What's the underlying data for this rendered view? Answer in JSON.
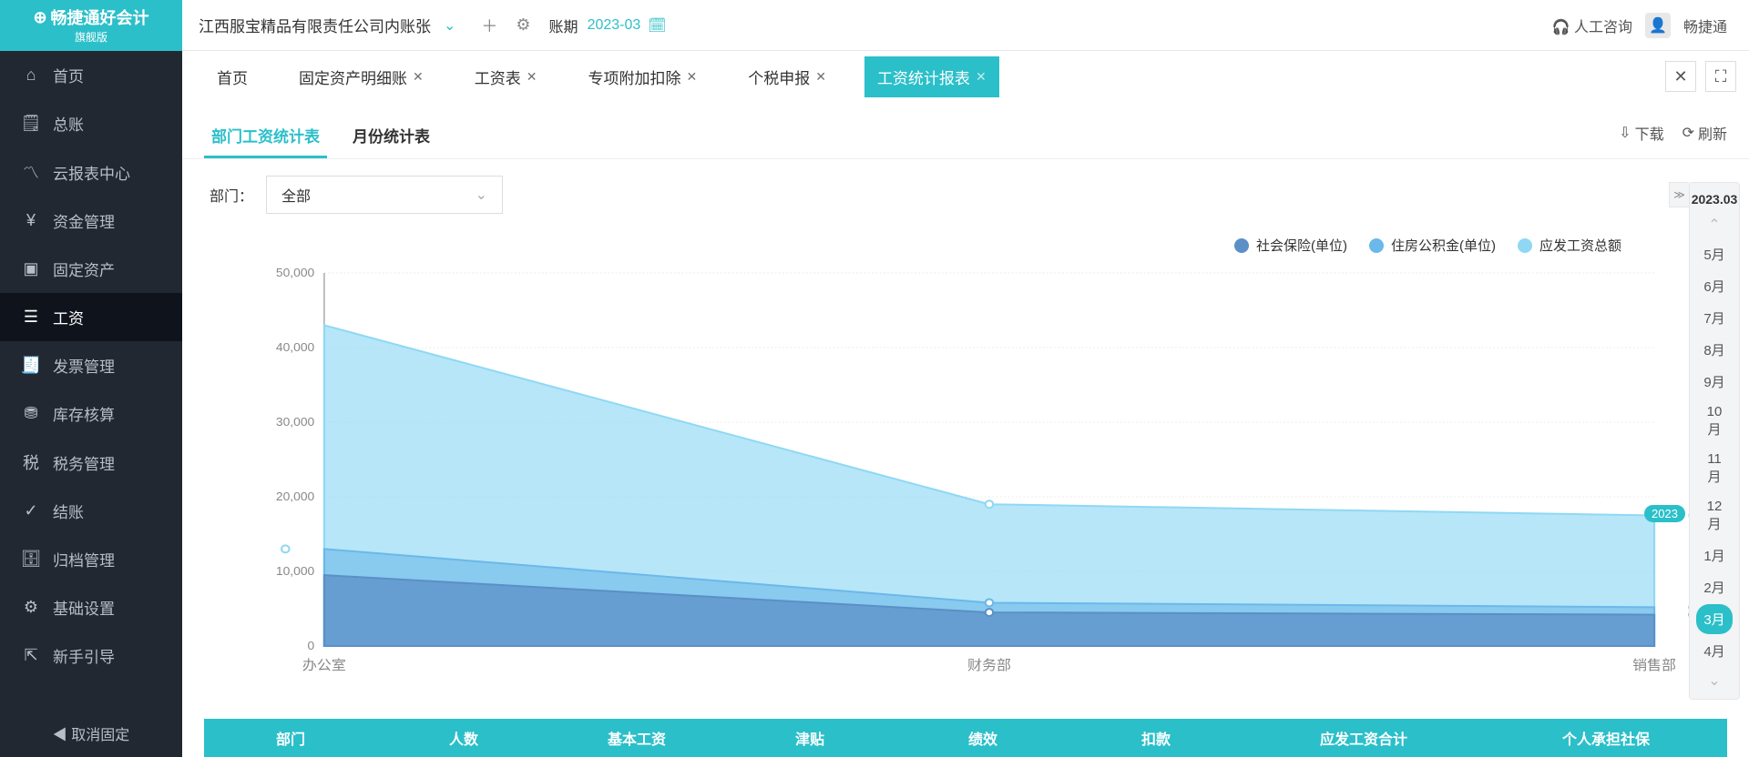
{
  "branding": {
    "logo": "畅捷通好会计",
    "edition": "旗舰版"
  },
  "company": {
    "name": "江西服宝精品有限责任公司内账张"
  },
  "period": {
    "label": "账期",
    "value": "2023-03"
  },
  "headerRight": {
    "consult": "人工咨询",
    "user": "畅捷通"
  },
  "sidebar": {
    "items": [
      {
        "label": "首页",
        "icon": "⌂"
      },
      {
        "label": "总账",
        "icon": "🗒"
      },
      {
        "label": "云报表中心",
        "icon": "〽"
      },
      {
        "label": "资金管理",
        "icon": "¥"
      },
      {
        "label": "固定资产",
        "icon": "▣"
      },
      {
        "label": "工资",
        "icon": "☰",
        "active": true
      },
      {
        "label": "发票管理",
        "icon": "🧾"
      },
      {
        "label": "库存核算",
        "icon": "⛃"
      },
      {
        "label": "税务管理",
        "icon": "税"
      },
      {
        "label": "结账",
        "icon": "✓"
      },
      {
        "label": "归档管理",
        "icon": "🗄"
      },
      {
        "label": "基础设置",
        "icon": "⚙"
      },
      {
        "label": "新手引导",
        "icon": "⇱"
      }
    ],
    "pinToggle": "取消固定"
  },
  "mainTabs": [
    {
      "label": "首页",
      "closable": false
    },
    {
      "label": "固定资产明细账",
      "closable": true
    },
    {
      "label": "工资表",
      "closable": true
    },
    {
      "label": "专项附加扣除",
      "closable": true
    },
    {
      "label": "个税申报",
      "closable": true
    },
    {
      "label": "工资统计报表",
      "closable": true,
      "active": true
    }
  ],
  "subTabs": {
    "a": "部门工资统计表",
    "b": "月份统计表"
  },
  "actions": {
    "download": "下载",
    "refresh": "刷新"
  },
  "filter": {
    "label": "部门：",
    "value": "全部"
  },
  "chart": {
    "type": "area",
    "legend": [
      {
        "label": "社会保险(单位)",
        "color": "#5b8fc7"
      },
      {
        "label": "住房公积金(单位)",
        "color": "#6bb8ea"
      },
      {
        "label": "应发工资总额",
        "color": "#8fd8f4"
      }
    ],
    "categories": [
      "办公室",
      "财务部",
      "销售部"
    ],
    "series": [
      {
        "name": "应发工资总额",
        "color": "#8fd8f4",
        "fillOpacity": 0.65,
        "values": [
          43000,
          19000,
          17500
        ]
      },
      {
        "name": "住房公积金(单位)",
        "color": "#6bb8ea",
        "fillOpacity": 0.6,
        "values": [
          13000,
          5800,
          5200
        ]
      },
      {
        "name": "社会保险(单位)",
        "color": "#5b8fc7",
        "fillOpacity": 0.75,
        "values": [
          9500,
          4500,
          4200
        ]
      }
    ],
    "ylim": [
      0,
      50000
    ],
    "ytick_step": 10000,
    "background_color": "#ffffff",
    "grid_color": "#dddddd",
    "label_fontsize": 13,
    "marker": {
      "show": true,
      "style": "circle-open",
      "radius": 4
    }
  },
  "tableHeaders": [
    "部门",
    "人数",
    "基本工资",
    "津贴",
    "绩效",
    "扣款",
    "应发工资合计",
    "个人承担社保"
  ],
  "monthBar": {
    "topLabel": "2023.03",
    "months": [
      "5月",
      "6月",
      "7月",
      "8月",
      "9月",
      "10月",
      "11月",
      "12月",
      "1月",
      "2月",
      "3月",
      "4月"
    ],
    "activeIndex": 10,
    "yearBadge": "2023"
  }
}
